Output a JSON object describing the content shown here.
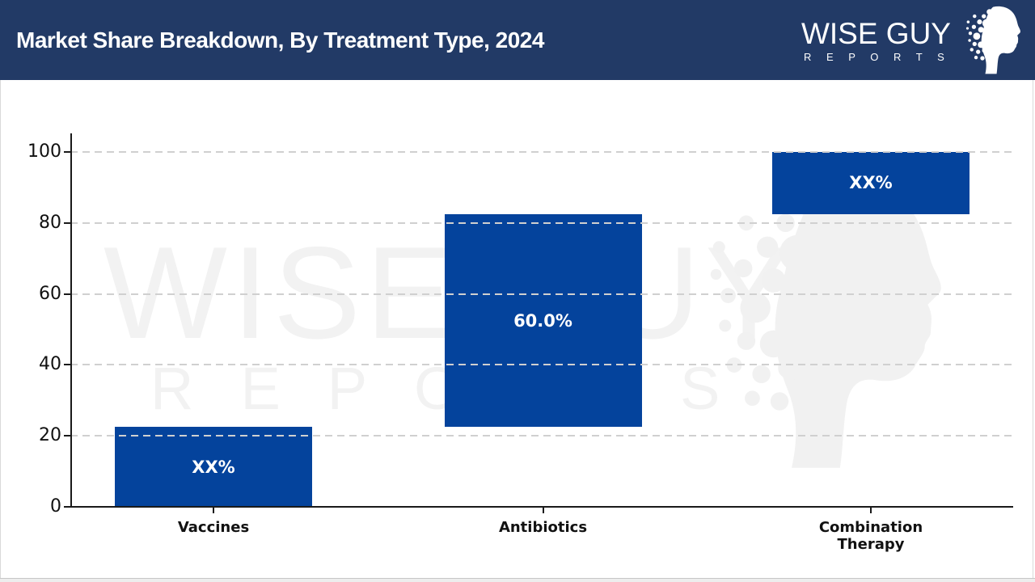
{
  "header": {
    "title": "Market Share Breakdown, By Treatment Type, 2024",
    "logo": {
      "brand": "WISE GUY",
      "brand_sub": "R E P O R T S"
    }
  },
  "watermark": {
    "brand": "WISE GUY",
    "brand_sub": "REPORTS"
  },
  "chart_data": {
    "type": "bar",
    "variant": "waterfall",
    "title": "Market Share Breakdown, By Treatment Type, 2024",
    "categories": [
      "Vaccines",
      "Antibiotics",
      "Combination Therapy"
    ],
    "categories_lines": [
      [
        "Vaccines"
      ],
      [
        "Antibiotics"
      ],
      [
        "Combination",
        "Therapy"
      ]
    ],
    "segments": [
      {
        "category": "Vaccines",
        "start": 0,
        "end": 22.5,
        "value": 22.5,
        "label": "XX%"
      },
      {
        "category": "Antibiotics",
        "start": 22.5,
        "end": 82.5,
        "value": 60.0,
        "label": "60.0%"
      },
      {
        "category": "Combination Therapy",
        "start": 82.5,
        "end": 100,
        "value": 17.5,
        "label": "XX%"
      }
    ],
    "bar_labels": [
      "XX%",
      "60.0%",
      "XX%"
    ],
    "xlabel": "",
    "ylabel": "",
    "ylim": [
      0,
      100
    ],
    "yticks": [
      0,
      20,
      40,
      60,
      80,
      100
    ],
    "grid": "horizontal-dashed",
    "legend": "none",
    "colors": {
      "bar": "#04439c",
      "grid": "#d0d0d0",
      "axis": "#1a1a1a",
      "bar_label_text": "#ffffff",
      "category_text": "#111111"
    }
  },
  "colors": {
    "header_bg": "#223a66",
    "content_bg": "#ffffff",
    "watermark": "#f2f2f2"
  }
}
